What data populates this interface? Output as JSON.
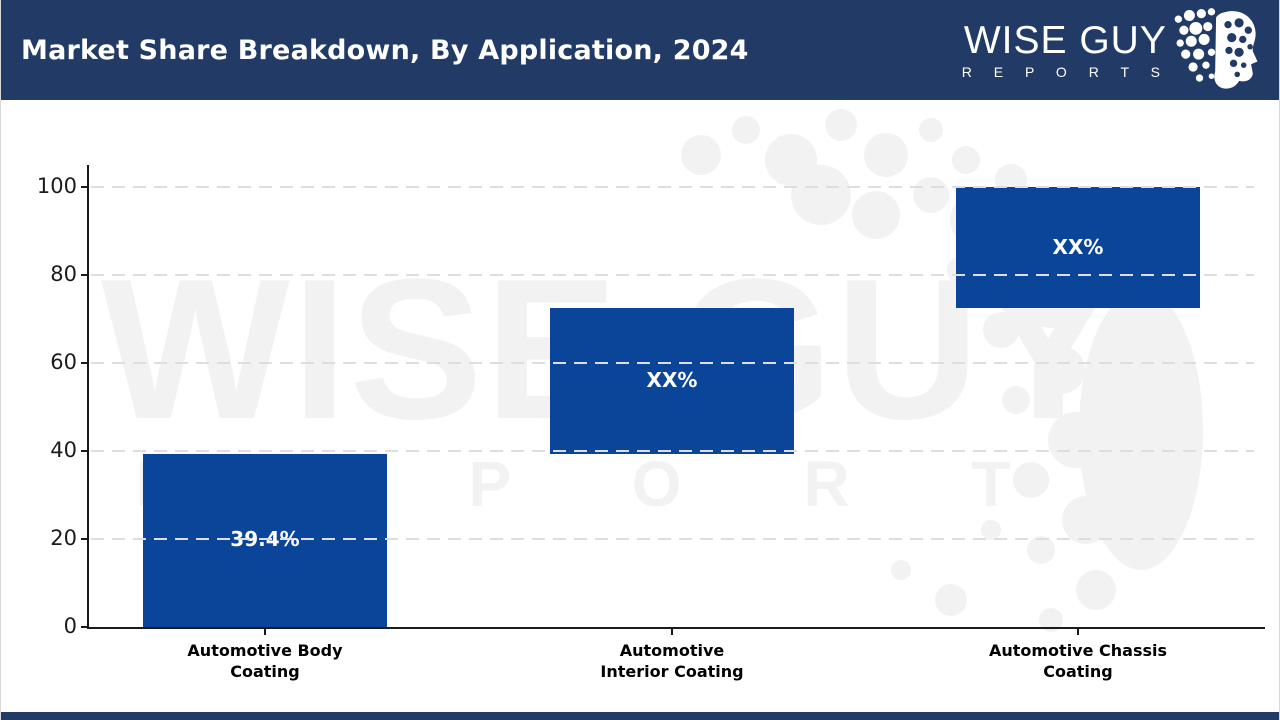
{
  "header": {
    "title": "Market Share Breakdown, By Application, 2024",
    "logo": {
      "line1": "WISE GUY",
      "line2": "R E P O R T S"
    }
  },
  "watermark": {
    "line1": "WISE GUY",
    "line2": "R E P O R T S"
  },
  "chart_data": {
    "type": "bar",
    "subtype": "floating-segment-waterfall",
    "title": "Market Share Breakdown, By Application, 2024",
    "categories": [
      "Automotive Body Coating",
      "Automotive Interior Coating",
      "Automotive Chassis Coating"
    ],
    "category_lines": [
      [
        "Automotive Body",
        "Coating"
      ],
      [
        "Automotive",
        "Interior Coating"
      ],
      [
        "Automotive Chassis",
        "Coating"
      ]
    ],
    "segments": [
      {
        "category": "Automotive Body Coating",
        "label": "39.4%",
        "start": 0,
        "end": 39.4
      },
      {
        "category": "Automotive Interior Coating",
        "label": "XX%",
        "start": 39.4,
        "end": 72.5
      },
      {
        "category": "Automotive Chassis Coating",
        "label": "XX%",
        "start": 72.5,
        "end": 100
      }
    ],
    "ylim": [
      0,
      100
    ],
    "yticks": [
      0,
      20,
      40,
      60,
      80,
      100
    ],
    "grid": "horizontal-dashed",
    "legend": "none",
    "bar_color": "#0a4599",
    "bar_label_color": "#ffffff"
  },
  "colors": {
    "header_bg": "#213a66",
    "footer_bg": "#213a66",
    "bar": "#0a4599",
    "axis": "#1b1b1b",
    "gridline": "#dedede",
    "watermark": "#f2f2f2",
    "title_text": "#ffffff"
  }
}
